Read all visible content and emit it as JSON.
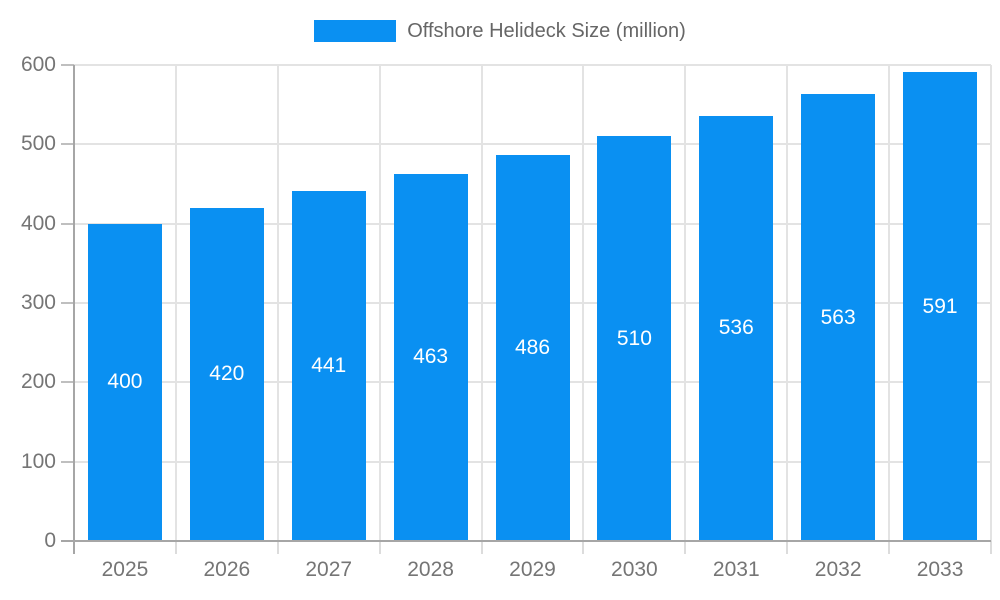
{
  "colors": {
    "bar": "#0a90f2",
    "gridline": "#e3e3e3",
    "axis": "#a6a6a6",
    "tick_label_text": "#757575",
    "legend_text": "#666666",
    "bar_value_text": "#ffffff",
    "background": "#ffffff"
  },
  "chart_data": {
    "type": "bar",
    "title": "",
    "legend": "Offshore Helideck Size (million)",
    "legend_position": "top-center",
    "categories": [
      "2025",
      "2026",
      "2027",
      "2028",
      "2029",
      "2030",
      "2031",
      "2032",
      "2033"
    ],
    "values": [
      400,
      420,
      441,
      463,
      486,
      510,
      536,
      563,
      591
    ],
    "value_labels_shown": true,
    "value_label_position": "center-of-bar",
    "xlabel": "",
    "ylabel": "",
    "ylim": [
      0,
      600
    ],
    "yticks": [
      0,
      100,
      200,
      300,
      400,
      500,
      600
    ],
    "grid": true
  }
}
